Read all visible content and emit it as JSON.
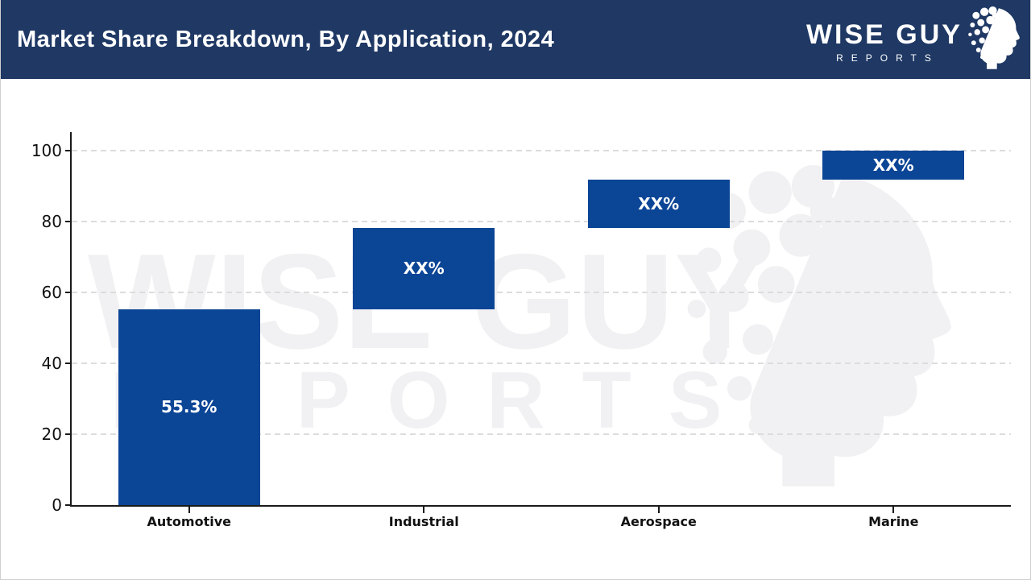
{
  "header": {
    "title": "Market Share Breakdown, By Application, 2024",
    "logo": {
      "line1": "WISE GUY",
      "line2": "REPORTS"
    }
  },
  "icons": {
    "logo_head": "dotted-head-profile-icon",
    "watermark_head": "dotted-head-profile-icon"
  },
  "watermark": {
    "line1": "WISE GUY",
    "line2": "REPORTS"
  },
  "colors": {
    "header_bg": "#1f3864",
    "bar": "#0b4596",
    "grid": "#dcdcdc",
    "axis": "#1a1a1a",
    "bar_label": "#ffffff",
    "watermark": "#f1f1f3"
  },
  "chart_data": {
    "type": "bar",
    "subtype": "waterfall",
    "title": "Market Share Breakdown, By Application, 2024",
    "xlabel": "",
    "ylabel": "",
    "categories": [
      "Automotive",
      "Industrial",
      "Aerospace",
      "Marine"
    ],
    "segments": [
      {
        "start": 0,
        "end": 55.3
      },
      {
        "start": 55.3,
        "end": 78.2
      },
      {
        "start": 78.2,
        "end": 91.8
      },
      {
        "start": 91.8,
        "end": 100
      }
    ],
    "bar_labels": [
      "55.3%",
      "XX%",
      "XX%",
      "XX%"
    ],
    "ylim": [
      0,
      105
    ],
    "yticks": [
      0,
      20,
      40,
      60,
      80,
      100
    ],
    "grid": "dashed-horizontal",
    "legend": "none"
  }
}
